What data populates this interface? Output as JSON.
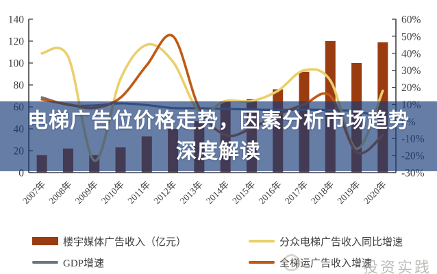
{
  "banner": {
    "line1": "电梯广告位价格走势，因素分析市场趋势",
    "line2": "深度解读",
    "bg_rgba": "rgba(23,58,120,0.66)"
  },
  "watermark": {
    "text": "投资实践"
  },
  "chart_data": {
    "type": "bar+line combo",
    "categories": [
      "2007年",
      "2008年",
      "2009年",
      "2010年",
      "2011年",
      "2012年",
      "2013年",
      "2014年",
      "2015年",
      "2016年",
      "2017年",
      "2018年",
      "2019年",
      "2020年"
    ],
    "series": [
      {
        "name": "楼宇媒体广告收入（亿元）",
        "type": "bar",
        "axis": "left",
        "color": "#9A3C10",
        "values": [
          16,
          22,
          16,
          23,
          33,
          40,
          47,
          65,
          67,
          76,
          92,
          120,
          100,
          119
        ]
      },
      {
        "name": "GDP增速",
        "type": "line",
        "axis": "right",
        "color": "#6A7686",
        "values": [
          14.2,
          9.7,
          9.4,
          10.6,
          9.6,
          7.9,
          7.8,
          7.4,
          7.0,
          6.8,
          6.9,
          6.7,
          6.0,
          2.2
        ]
      },
      {
        "name": "分众电梯广告收入同比增速",
        "type": "line",
        "axis": "right",
        "color": "#EBCF6A",
        "values": [
          40,
          38,
          -23,
          25,
          45,
          35,
          6,
          12,
          12,
          18,
          30,
          24,
          -16,
          18
        ]
      },
      {
        "name": "全梯运广告收入增速",
        "type": "line",
        "axis": "right",
        "color": "#C05A14",
        "values": [
          13,
          10,
          8,
          14,
          33,
          50,
          8,
          -8,
          -4,
          4,
          10,
          15,
          -18,
          -8
        ]
      }
    ],
    "left_axis": {
      "min": 0,
      "max": 140,
      "step": 20,
      "labels": [
        "0",
        "20",
        "40",
        "60",
        "80",
        "100",
        "120",
        "140"
      ]
    },
    "right_axis": {
      "min": -30,
      "max": 60,
      "step": 10,
      "format": "percent",
      "labels": [
        "-30%",
        "-20%",
        "-10%",
        "0%",
        "10%",
        "20%",
        "30%",
        "40%",
        "50%",
        "60%"
      ]
    },
    "grid": false,
    "legend_position": "bottom",
    "title": "",
    "xlabel": "",
    "ylabel": ""
  }
}
